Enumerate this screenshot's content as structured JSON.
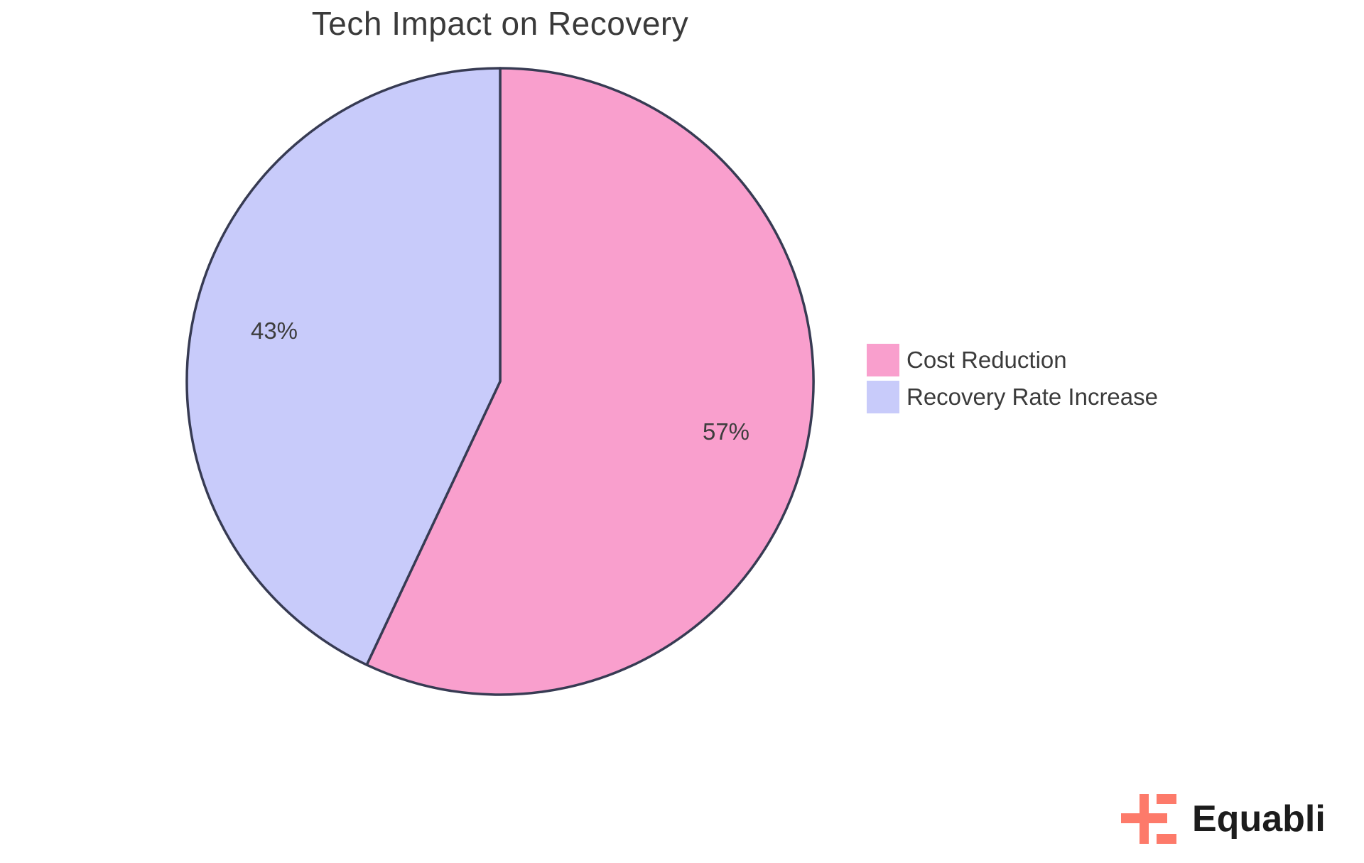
{
  "title": "Tech Impact on Recovery",
  "chart_data": {
    "type": "pie",
    "title": "Tech Impact on Recovery",
    "categories": [
      "Cost Reduction",
      "Recovery Rate Increase"
    ],
    "values": [
      57,
      43
    ],
    "slice_labels": [
      "57%",
      "43%"
    ],
    "colors": [
      "#F99FCD",
      "#C8CBFA"
    ],
    "stroke_color": "#373B53",
    "stroke_width": 3.5,
    "start_angle_deg": -90,
    "direction": "clockwise",
    "legend_position": "right",
    "label_radius_ratio": 0.74,
    "label_color": "#3d3d3d"
  },
  "legend": {
    "items": [
      {
        "label": "Cost Reduction",
        "color": "#F99FCD"
      },
      {
        "label": "Recovery Rate Increase",
        "color": "#C8CBFA"
      }
    ]
  },
  "branding": {
    "name": "Equabli",
    "logo_color": "#FD7A6A",
    "text_color": "#1c1c1c"
  }
}
